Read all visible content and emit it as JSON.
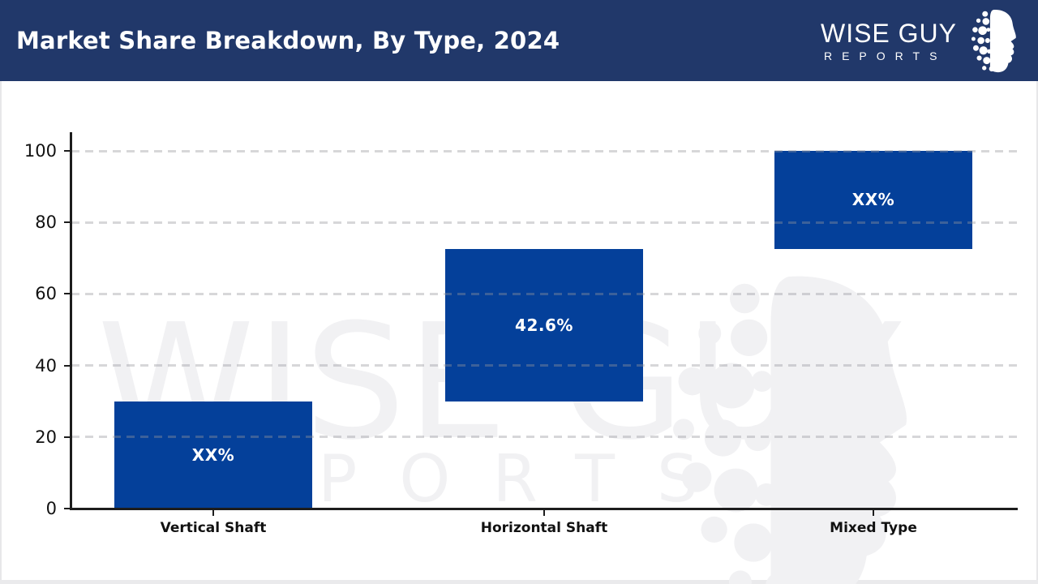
{
  "header": {
    "title": "Market Share Breakdown, By Type, 2024",
    "logo": {
      "name": "WISE GUY",
      "sub": "REPORTS"
    }
  },
  "watermark": {
    "line1": "WISE GUY",
    "line2": "REPORTS"
  },
  "colors": {
    "header_bg": "#21386a",
    "bar": "#04409a",
    "grid": "#d9d9d9",
    "axis": "#1d1d1d",
    "bar_label": "#ffffff",
    "watermark": "#f1f1f3"
  },
  "chart_data": {
    "type": "bar",
    "subtype": "floating-waterfall",
    "title": "Market Share Breakdown, By Type, 2024",
    "categories": [
      "Vertical Shaft",
      "Horizontal Shaft",
      "Mixed Type"
    ],
    "bars": [
      {
        "category": "Vertical Shaft",
        "start": 0,
        "end": 30,
        "label": "XX%"
      },
      {
        "category": "Horizontal Shaft",
        "start": 30,
        "end": 72.6,
        "label": "42.6%"
      },
      {
        "category": "Mixed Type",
        "start": 72.6,
        "end": 100,
        "label": "XX%"
      }
    ],
    "ylim": [
      0,
      105
    ],
    "yticks": [
      0,
      20,
      40,
      60,
      80,
      100
    ],
    "xlabel": "",
    "ylabel": "",
    "grid": "horizontal-dashed",
    "legend": "none",
    "bar_color": "#04409a"
  }
}
